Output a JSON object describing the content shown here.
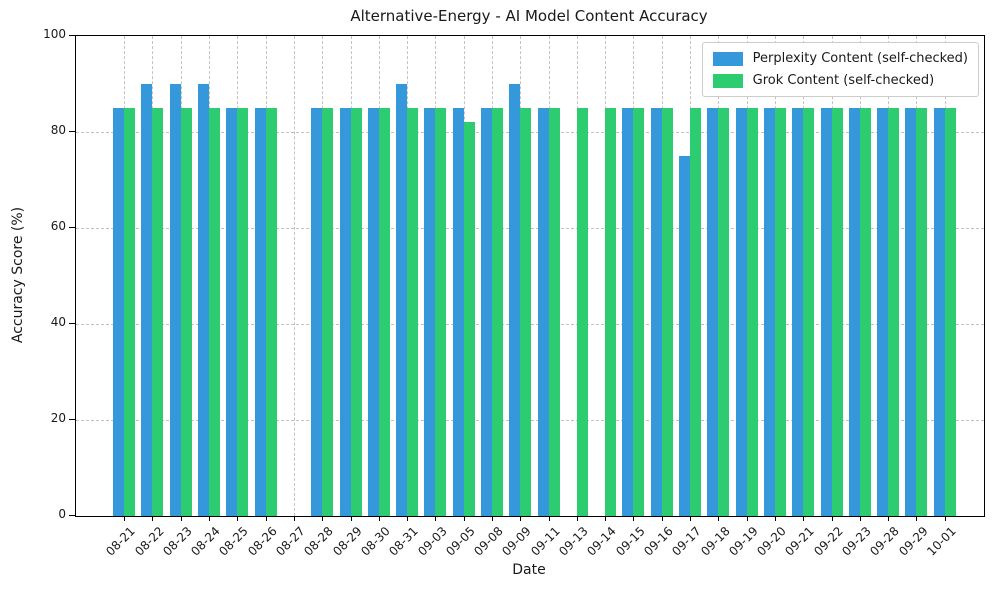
{
  "chart_data": {
    "type": "bar",
    "title": "Alternative-Energy - AI Model Content Accuracy",
    "xlabel": "Date",
    "ylabel": "Accuracy Score (%)",
    "ylim": [
      0,
      100
    ],
    "yticks": [
      0,
      20,
      40,
      60,
      80,
      100
    ],
    "grid": true,
    "legend_position": "upper right",
    "categories": [
      "08-21",
      "08-22",
      "08-23",
      "08-24",
      "08-25",
      "08-26",
      "08-27",
      "08-28",
      "08-29",
      "08-30",
      "08-31",
      "09-03",
      "09-05",
      "09-08",
      "09-09",
      "09-11",
      "09-13",
      "09-14",
      "09-15",
      "09-16",
      "09-17",
      "09-18",
      "09-19",
      "09-20",
      "09-21",
      "09-22",
      "09-23",
      "09-28",
      "09-29",
      "10-01"
    ],
    "series": [
      {
        "name": "Perplexity Content (self-checked)",
        "color": "#3498db",
        "values": [
          85,
          90,
          90,
          90,
          85,
          85,
          0,
          85,
          85,
          85,
          90,
          85,
          85,
          85,
          90,
          85,
          0,
          0,
          85,
          85,
          75,
          85,
          85,
          85,
          85,
          85,
          85,
          85,
          85,
          85
        ]
      },
      {
        "name": "Grok Content (self-checked)",
        "color": "#2ecc71",
        "values": [
          85,
          85,
          85,
          85,
          85,
          85,
          0,
          85,
          85,
          85,
          85,
          85,
          82,
          85,
          85,
          85,
          85,
          85,
          85,
          85,
          85,
          85,
          85,
          85,
          85,
          85,
          85,
          85,
          85,
          85
        ]
      }
    ]
  }
}
